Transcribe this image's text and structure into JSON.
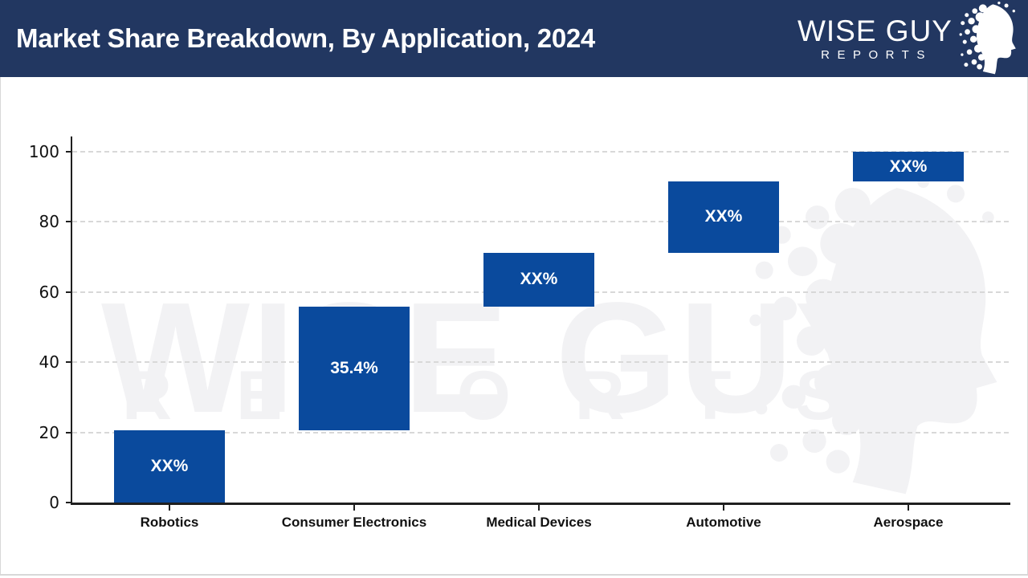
{
  "header": {
    "title": "Market Share Breakdown, By Application, 2024",
    "brand": {
      "line1": "WISE GUY",
      "line2": "REPORTS"
    }
  },
  "watermark": {
    "line1": "WISE GUY",
    "line2": "REPORTS"
  },
  "colors": {
    "header_bg": "#223761",
    "bar": "#0a4a9d",
    "bar_label": "#ffffff",
    "axis": "#1f1f1f",
    "grid": "#d8d8d8",
    "watermark": "#f2f2f4"
  },
  "chart_data": {
    "type": "bar",
    "subtype": "waterfall",
    "title": "Market Share Breakdown, By Application, 2024",
    "categories": [
      "Robotics",
      "Consumer Electronics",
      "Medical Devices",
      "Automotive",
      "Aerospace"
    ],
    "bars": [
      {
        "category": "Robotics",
        "start": 0,
        "end": 20.5,
        "label": "XX%"
      },
      {
        "category": "Consumer Electronics",
        "start": 20.5,
        "end": 55.9,
        "label": "35.4%",
        "value": 35.4
      },
      {
        "category": "Medical Devices",
        "start": 55.9,
        "end": 71.2,
        "label": "XX%"
      },
      {
        "category": "Automotive",
        "start": 71.2,
        "end": 91.5,
        "label": "XX%"
      },
      {
        "category": "Aerospace",
        "start": 91.5,
        "end": 100,
        "label": "XX%"
      }
    ],
    "yticks": [
      0,
      20,
      40,
      60,
      80,
      100
    ],
    "ylim": [
      0,
      105
    ],
    "xlabel": "",
    "ylabel": "",
    "grid": "horizontal-dashed",
    "legend": "none",
    "bar_labels_inside": true
  }
}
